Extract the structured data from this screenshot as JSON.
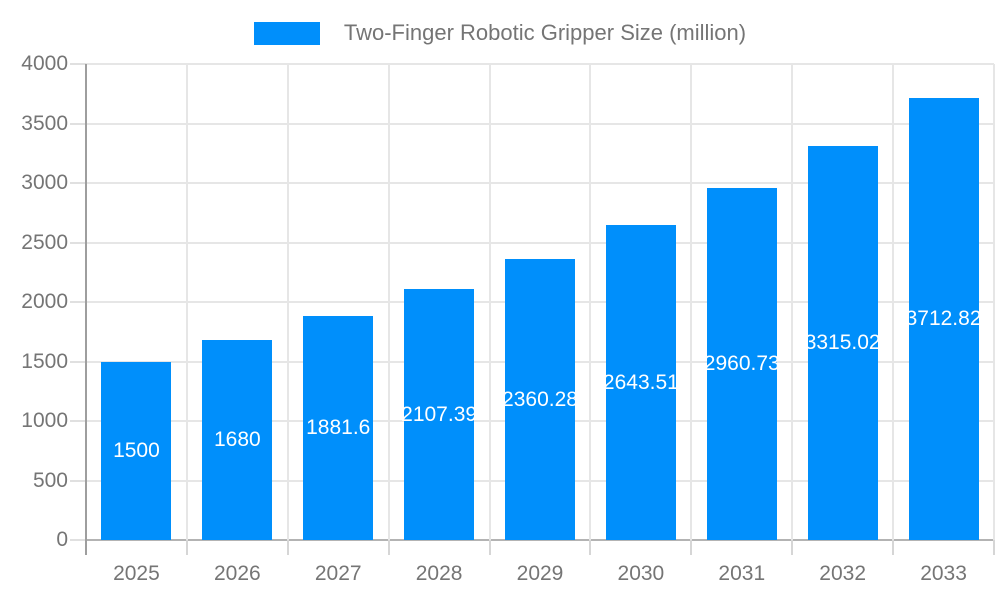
{
  "legend": {
    "label": "Two-Finger Robotic Gripper Size (million)",
    "swatch_color": "#008FFB"
  },
  "chart_data": {
    "type": "bar",
    "title": "Two-Finger Robotic Gripper Size (million)",
    "categories": [
      "2025",
      "2026",
      "2027",
      "2028",
      "2029",
      "2030",
      "2031",
      "2032",
      "2033"
    ],
    "values": [
      1500,
      1680,
      1881.6,
      2107.39,
      2360.28,
      2643.51,
      2960.73,
      3315.02,
      3712.82
    ],
    "value_labels": [
      "1500",
      "1680",
      "1881.6",
      "2107.39",
      "2360.28",
      "2643.51",
      "2960.73",
      "3315.02",
      "3712.82"
    ],
    "xlabel": "",
    "ylabel": "",
    "ylim": [
      0,
      4000
    ],
    "y_ticks": [
      0,
      500,
      1000,
      1500,
      2000,
      2500,
      3000,
      3500,
      4000
    ],
    "y_tick_labels": [
      "0",
      "500",
      "1000",
      "1500",
      "2000",
      "2500",
      "3000",
      "3500",
      "4000"
    ],
    "grid": true,
    "legend_position": "top",
    "bar_color": "#008FFB",
    "bar_label_color": "#ffffff",
    "axis_text_color": "#757575",
    "gridline_color": "#e6e6e6",
    "baseline_color": "#b3b3b3",
    "axis_line_color": "#9e9e9e"
  }
}
